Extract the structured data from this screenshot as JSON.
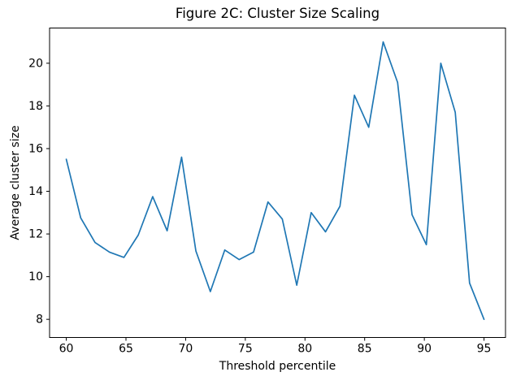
{
  "chart_data": {
    "type": "line",
    "title": "Figure 2C: Cluster Size Scaling",
    "xlabel": "Threshold percentile",
    "ylabel": "Average cluster size",
    "x": [
      60.0,
      61.21,
      62.41,
      63.62,
      64.83,
      66.03,
      67.24,
      68.45,
      69.66,
      70.86,
      72.07,
      73.28,
      74.48,
      75.69,
      76.9,
      78.1,
      79.31,
      80.52,
      81.72,
      82.93,
      84.14,
      85.34,
      86.55,
      87.76,
      88.97,
      90.17,
      91.38,
      92.59,
      93.79,
      95.0
    ],
    "y": [
      15.5,
      12.75,
      11.6,
      11.15,
      10.9,
      11.95,
      13.75,
      12.15,
      15.6,
      11.2,
      9.3,
      11.25,
      10.8,
      11.15,
      13.5,
      12.7,
      9.6,
      13.0,
      12.1,
      13.3,
      18.5,
      17.0,
      21.0,
      19.1,
      12.9,
      11.5,
      20.0,
      17.7,
      9.7,
      8.0
    ],
    "xticks": [
      60,
      65,
      70,
      75,
      80,
      85,
      90,
      95
    ],
    "yticks": [
      8,
      10,
      12,
      14,
      16,
      18,
      20
    ],
    "xlim": [
      58.6,
      96.8
    ],
    "ylim": [
      7.15,
      21.65
    ],
    "line_color": "#1f77b4",
    "line_width": 1.7,
    "spine_color": "#000000",
    "background_color": "#ffffff",
    "grid": false,
    "legend": null
  }
}
